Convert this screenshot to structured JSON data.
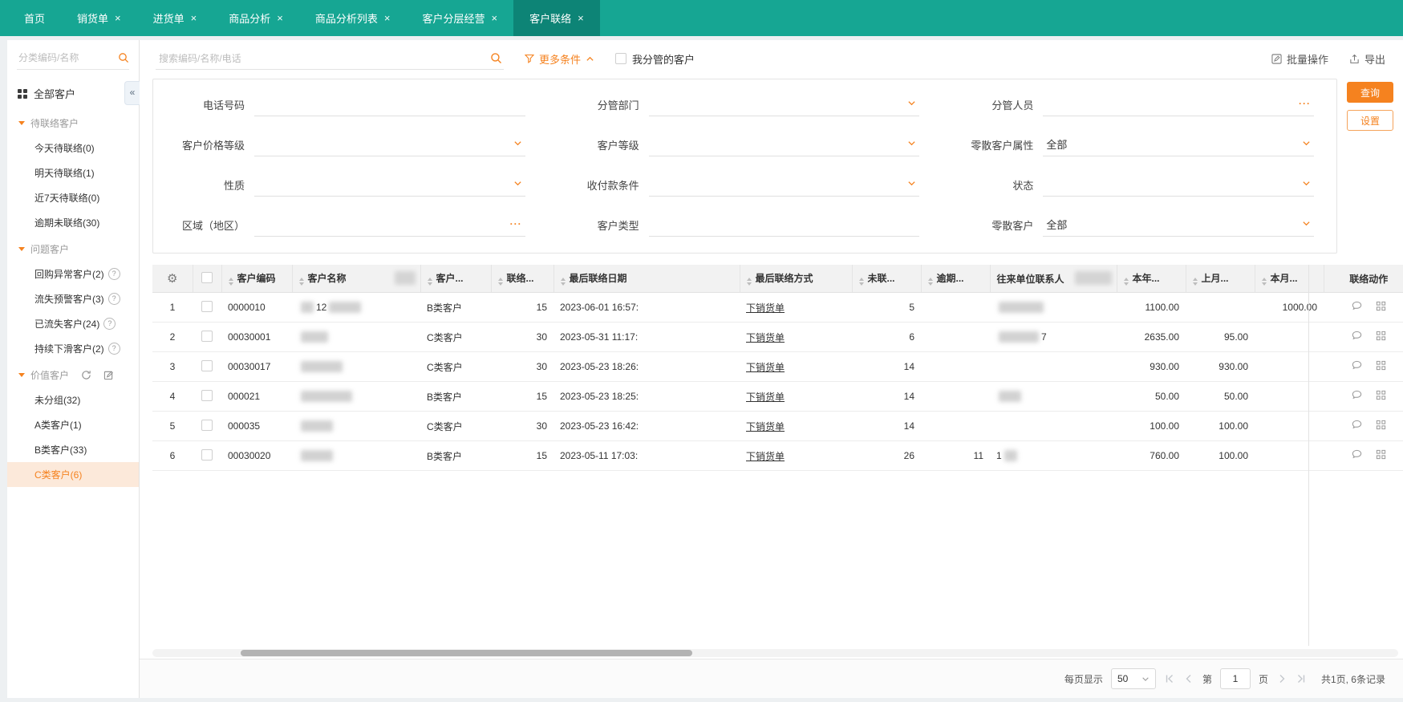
{
  "colors": {
    "accent_orange": "#F5821F",
    "teal": "#16A693",
    "teal_active": "#0D8476",
    "selected_bg": "#FCE9DA"
  },
  "tabs": [
    {
      "label": "首页",
      "closable": false,
      "active": false
    },
    {
      "label": "销货单",
      "closable": true,
      "active": false
    },
    {
      "label": "进货单",
      "closable": true,
      "active": false
    },
    {
      "label": "商品分析",
      "closable": true,
      "active": false
    },
    {
      "label": "商品分析列表",
      "closable": true,
      "active": false
    },
    {
      "label": "客户分层经营",
      "closable": true,
      "active": false
    },
    {
      "label": "客户联络",
      "closable": true,
      "active": true
    }
  ],
  "sidebar": {
    "search_placeholder": "分类编码/名称",
    "root_label": "全部客户",
    "collapse_glyph": "«",
    "groups": [
      {
        "label": "待联络客户",
        "tools": [],
        "items": [
          {
            "label": "今天待联络(0)"
          },
          {
            "label": "明天待联络(1)"
          },
          {
            "label": "近7天待联络(0)"
          },
          {
            "label": "逾期未联络(30)"
          }
        ]
      },
      {
        "label": "问题客户",
        "tools": [],
        "items": [
          {
            "label": "回购异常客户(2)",
            "help": true
          },
          {
            "label": "流失预警客户(3)",
            "help": true
          },
          {
            "label": "已流失客户(24)",
            "help": true
          },
          {
            "label": "持续下滑客户(2)",
            "help": true
          }
        ]
      },
      {
        "label": "价值客户",
        "tools": [
          "refresh",
          "edit"
        ],
        "items": [
          {
            "label": "未分组(32)"
          },
          {
            "label": "A类客户(1)"
          },
          {
            "label": "B类客户(33)"
          },
          {
            "label": "C类客户(6)",
            "selected": true
          }
        ]
      }
    ]
  },
  "toolbar": {
    "search_placeholder": "搜索编码/名称/电话",
    "more_label": "更多条件",
    "my_label": "我分管的客户",
    "batch_label": "批量操作",
    "export_label": "导出"
  },
  "filters": {
    "query_label": "查询",
    "settings_label": "设置",
    "fields": [
      {
        "label": "电话号码",
        "type": "input",
        "value": ""
      },
      {
        "label": "分管部门",
        "type": "select",
        "value": ""
      },
      {
        "label": "分管人员",
        "type": "ellipsis",
        "value": ""
      },
      {
        "label": "客户价格等级",
        "type": "select",
        "value": ""
      },
      {
        "label": "客户等级",
        "type": "select",
        "value": ""
      },
      {
        "label": "零散客户属性",
        "type": "select",
        "value": "全部"
      },
      {
        "label": "性质",
        "type": "select",
        "value": ""
      },
      {
        "label": "收付款条件",
        "type": "select",
        "value": ""
      },
      {
        "label": "状态",
        "type": "select",
        "value": ""
      },
      {
        "label": "区域（地区）",
        "type": "ellipsis",
        "value": ""
      },
      {
        "label": "客户类型",
        "type": "input",
        "value": ""
      },
      {
        "label": "零散客户",
        "type": "select",
        "value": "全部"
      }
    ]
  },
  "table": {
    "headers": [
      {
        "label": "客户编码",
        "sortable": true
      },
      {
        "label": "客户名称",
        "sortable": true,
        "blur": 26
      },
      {
        "label": "客户...",
        "sortable": true
      },
      {
        "label": "联络...",
        "sortable": true
      },
      {
        "label": "最后联络日期",
        "sortable": true
      },
      {
        "label": "最后联络方式",
        "sortable": true
      },
      {
        "label": "未联...",
        "sortable": true
      },
      {
        "label": "逾期...",
        "sortable": true
      },
      {
        "label": "往来单位联系人",
        "sortable": false,
        "blur": 46
      },
      {
        "label": "本年...",
        "sortable": true
      },
      {
        "label": "上月...",
        "sortable": true
      },
      {
        "label": "本月...",
        "sortable": true
      },
      {
        "label": "联络动作",
        "sortable": false
      }
    ],
    "rows": [
      {
        "num": "1",
        "code": "0000010",
        "name": {
          "pre": 16,
          "frag": "12",
          "post": 40
        },
        "grade": "B类客户",
        "cycle": "15",
        "last_date": "2023-06-01 16:57:",
        "method": "下销货单",
        "uncontacted": "5",
        "overdue": "",
        "contact": {
          "frag": "",
          "blur": 56,
          "suffix": ""
        },
        "year_amt": "1100.00",
        "prev_amt": "",
        "month_amt": "1000.00"
      },
      {
        "num": "2",
        "code": "00030001",
        "name": {
          "pre": 0,
          "frag": "",
          "post": 34
        },
        "grade": "C类客户",
        "cycle": "30",
        "last_date": "2023-05-31 11:17:",
        "method": "下销货单",
        "uncontacted": "6",
        "overdue": "",
        "contact": {
          "frag": "",
          "blur": 50,
          "suffix": "7"
        },
        "year_amt": "2635.00",
        "prev_amt": "95.00",
        "month_amt": ""
      },
      {
        "num": "3",
        "code": "00030017",
        "name": {
          "pre": 0,
          "frag": "",
          "post": 52
        },
        "grade": "C类客户",
        "cycle": "30",
        "last_date": "2023-05-23 18:26:",
        "method": "下销货单",
        "uncontacted": "14",
        "overdue": "",
        "contact": {
          "frag": "",
          "blur": 0,
          "suffix": ""
        },
        "year_amt": "930.00",
        "prev_amt": "930.00",
        "month_amt": ""
      },
      {
        "num": "4",
        "code": "000021",
        "name": {
          "pre": 0,
          "frag": "",
          "post": 64
        },
        "grade": "B类客户",
        "cycle": "15",
        "last_date": "2023-05-23 18:25:",
        "method": "下销货单",
        "uncontacted": "14",
        "overdue": "",
        "contact": {
          "frag": "",
          "blur": 28,
          "suffix": ""
        },
        "year_amt": "50.00",
        "prev_amt": "50.00",
        "month_amt": ""
      },
      {
        "num": "5",
        "code": "000035",
        "name": {
          "pre": 0,
          "frag": "",
          "post": 40
        },
        "grade": "C类客户",
        "cycle": "30",
        "last_date": "2023-05-23 16:42:",
        "method": "下销货单",
        "uncontacted": "14",
        "overdue": "",
        "contact": {
          "frag": "",
          "blur": 0,
          "suffix": ""
        },
        "year_amt": "100.00",
        "prev_amt": "100.00",
        "month_amt": ""
      },
      {
        "num": "6",
        "code": "00030020",
        "name": {
          "pre": 0,
          "frag": "",
          "post": 40
        },
        "grade": "B类客户",
        "cycle": "15",
        "last_date": "2023-05-11 17:03:",
        "method": "下销货单",
        "uncontacted": "26",
        "overdue": "11",
        "contact": {
          "frag": "1",
          "blur": 16,
          "suffix": ""
        },
        "year_amt": "760.00",
        "prev_amt": "100.00",
        "month_amt": ""
      }
    ]
  },
  "pagination": {
    "per_page_label": "每页显示",
    "per_page_value": "50",
    "page_prefix": "第",
    "page_value": "1",
    "page_suffix": "页",
    "total_label": "共1页, 6条记录"
  }
}
